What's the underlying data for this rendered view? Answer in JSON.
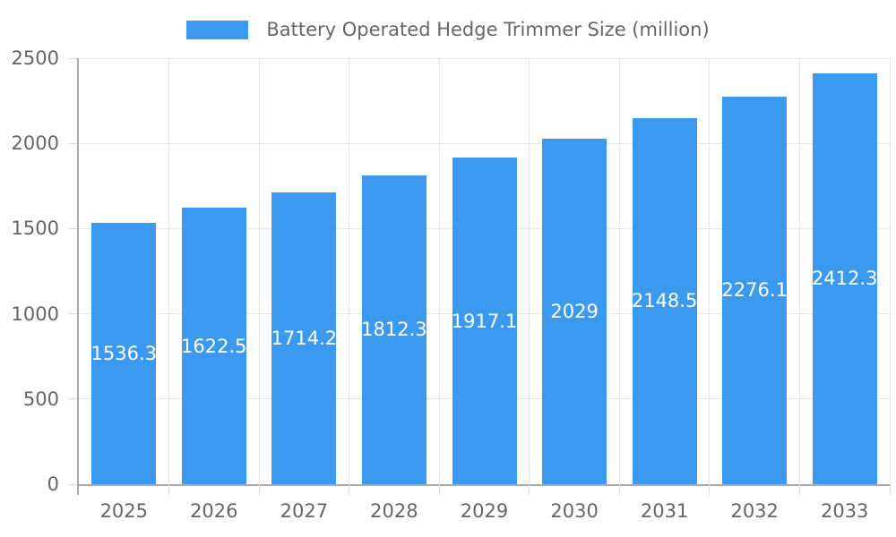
{
  "legend": {
    "swatch_icon": "legend-color-swatch",
    "label": "Battery Operated Hedge Trimmer Size (million)"
  },
  "chart_data": {
    "type": "bar",
    "title": "Battery Operated Hedge Trimmer Size (million)",
    "series_name": "Battery Operated Hedge Trimmer Size (million)",
    "categories": [
      "2025",
      "2026",
      "2027",
      "2028",
      "2029",
      "2030",
      "2031",
      "2032",
      "2033"
    ],
    "values": [
      1536.3,
      1622.5,
      1714.2,
      1812.3,
      1917.1,
      2029,
      2148.5,
      2276.1,
      2412.3
    ],
    "value_labels": [
      "1536.3",
      "1622.5",
      "1714.2",
      "1812.3",
      "1917.1",
      "2029",
      "2148.5",
      "2276.1",
      "2412.3"
    ],
    "xlabel": "",
    "ylabel": "",
    "ylim": [
      0,
      2500
    ],
    "yticks": [
      0,
      500,
      1000,
      1500,
      2000,
      2500
    ],
    "grid": true,
    "legend_position": "top-center",
    "value_label_position": "center-of-bar"
  },
  "colors": {
    "bar": "#3b9af0",
    "value_label": "#ffffff",
    "axis_text": "#666666",
    "gridline": "#e6e6e6",
    "tick": "#dcdcdc",
    "axis_line": "#ababab",
    "background": "#ffffff"
  }
}
